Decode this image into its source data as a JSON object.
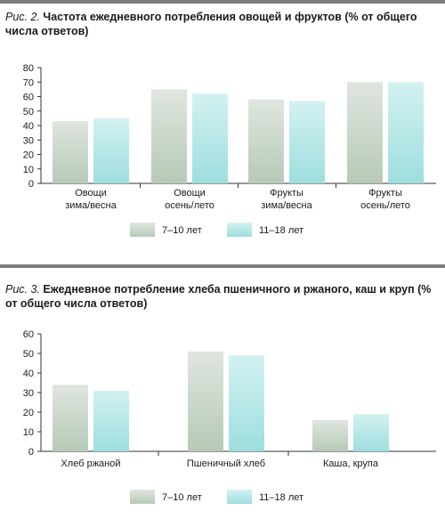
{
  "chart_data": [
    {
      "type": "bar",
      "figure_label": "Рис. 2.",
      "title": "Частота ежедневного потребления овощей и фруктов (% от общего числа ответов)",
      "categories": [
        [
          "Овощи",
          "зима/весна"
        ],
        [
          "Овощи",
          "осень/лето"
        ],
        [
          "Фрукты",
          "зима/весна"
        ],
        [
          "Фрукты",
          "осень/лето"
        ]
      ],
      "series": [
        {
          "name": "7–10 лет",
          "values": [
            43,
            65,
            58,
            70
          ]
        },
        {
          "name": "11–18 лет",
          "values": [
            45,
            62,
            57,
            70
          ]
        }
      ],
      "ylim": [
        0,
        80
      ],
      "yticks": [
        0,
        10,
        20,
        30,
        40,
        50,
        60,
        70,
        80
      ],
      "grid": false,
      "legend": "bottom-center",
      "colors": {
        "series_0_top": "#dfe6df",
        "series_0_bottom": "#b7c9b7",
        "series_1_top": "#d3f1f1",
        "series_1_bottom": "#9edede"
      }
    },
    {
      "type": "bar",
      "figure_label": "Рис. 3.",
      "title": "Ежедневное потребление хлеба пшеничного и ржаного, каш и круп (% от общего числа ответов)",
      "categories": [
        [
          "Хлеб ржаной"
        ],
        [
          "Пшеничный хлеб"
        ],
        [
          "Каша, крупа"
        ]
      ],
      "series": [
        {
          "name": "7–10 лет",
          "values": [
            34,
            51,
            16
          ]
        },
        {
          "name": "11–18 лет",
          "values": [
            31,
            49,
            19
          ]
        }
      ],
      "ylim": [
        0,
        60
      ],
      "yticks": [
        0,
        10,
        20,
        30,
        40,
        50,
        60
      ],
      "grid": false,
      "legend": "bottom-center",
      "colors": {
        "series_0_top": "#dfe6df",
        "series_0_bottom": "#b7c9b7",
        "series_1_top": "#d3f1f1",
        "series_1_bottom": "#9edede"
      }
    }
  ]
}
